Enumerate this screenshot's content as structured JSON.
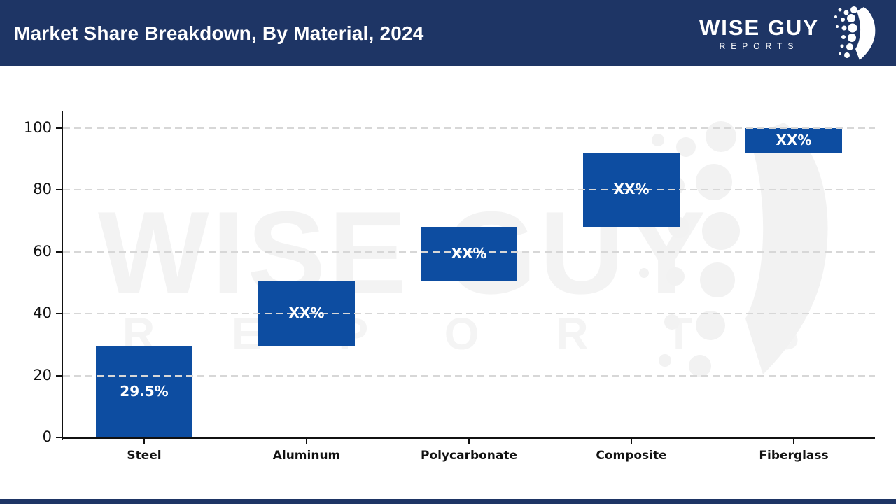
{
  "header": {
    "title": "Market Share Breakdown, By Material, 2024",
    "bg_color": "#1e3565",
    "logo": {
      "line1": "WISE GUY",
      "line2": "REPORTS"
    }
  },
  "watermark": {
    "line1": "WISE GUY",
    "line2": "REPORTS"
  },
  "chart_data": {
    "type": "bar",
    "subtype": "waterfall",
    "title": "Market Share Breakdown, By Material, 2024",
    "categories": [
      "Steel",
      "Aluminum",
      "Polycarbonate",
      "Composite",
      "Fiberglass"
    ],
    "segments": [
      {
        "category": "Steel",
        "start": 0,
        "end": 29.5,
        "label": "29.5%"
      },
      {
        "category": "Aluminum",
        "start": 29.5,
        "end": 50.5,
        "label": "XX%"
      },
      {
        "category": "Polycarbonate",
        "start": 50.5,
        "end": 68.2,
        "label": "XX%"
      },
      {
        "category": "Composite",
        "start": 68.2,
        "end": 91.8,
        "label": "XX%"
      },
      {
        "category": "Fiberglass",
        "start": 91.8,
        "end": 100,
        "label": "XX%"
      }
    ],
    "xlabel": "",
    "ylabel": "",
    "ylim": [
      0,
      100
    ],
    "yticks": [
      0,
      20,
      40,
      60,
      80,
      100
    ],
    "grid": "horizontal-dashed",
    "legend": "none",
    "bar_color": "#0d4da1",
    "bar_label_color": "#ffffff",
    "axis_color": "#111111",
    "gridline_color": "#d7d7d7"
  }
}
